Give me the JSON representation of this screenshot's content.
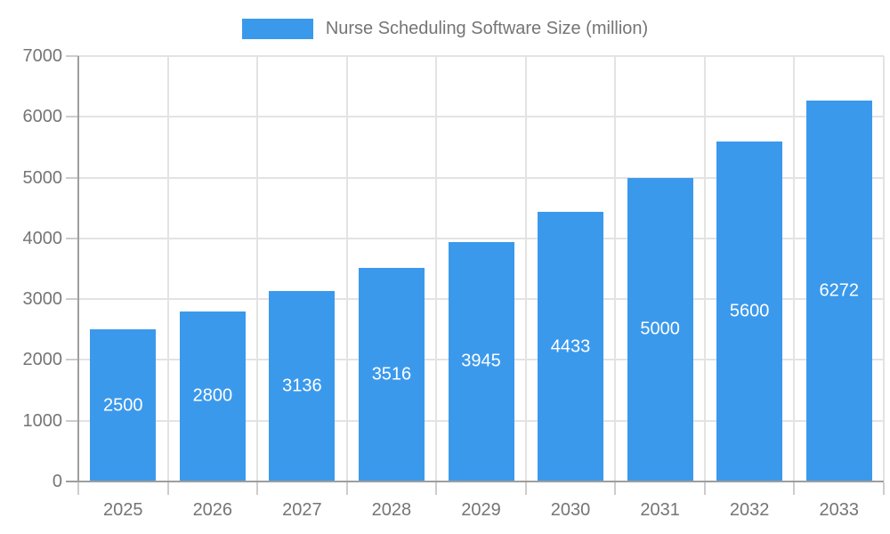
{
  "legend": {
    "label": "Nurse Scheduling Software Size (million)"
  },
  "colors": {
    "bar": "#3b99ec",
    "axis_text": "#757575",
    "axis_line": "#9e9e9e",
    "gridline": "#e3e3e3",
    "tick": "#cccccc",
    "value_label": "#ffffff",
    "background": "#ffffff"
  },
  "chart_data": {
    "type": "bar",
    "title": "",
    "series_name": "Nurse Scheduling Software Size (million)",
    "categories": [
      "2025",
      "2026",
      "2027",
      "2028",
      "2029",
      "2030",
      "2031",
      "2032",
      "2033"
    ],
    "values": [
      2500,
      2800,
      3136,
      3516,
      3945,
      4433,
      5000,
      5600,
      6272
    ],
    "value_labels": [
      "2500",
      "2800",
      "3136",
      "3516",
      "3945",
      "4433",
      "5000",
      "5600",
      "6272"
    ],
    "xlabel": "",
    "ylabel": "",
    "ylim": [
      0,
      7000
    ],
    "yticks": [
      0,
      1000,
      2000,
      3000,
      4000,
      5000,
      6000,
      7000
    ],
    "grid": true,
    "legend_position": "top"
  }
}
